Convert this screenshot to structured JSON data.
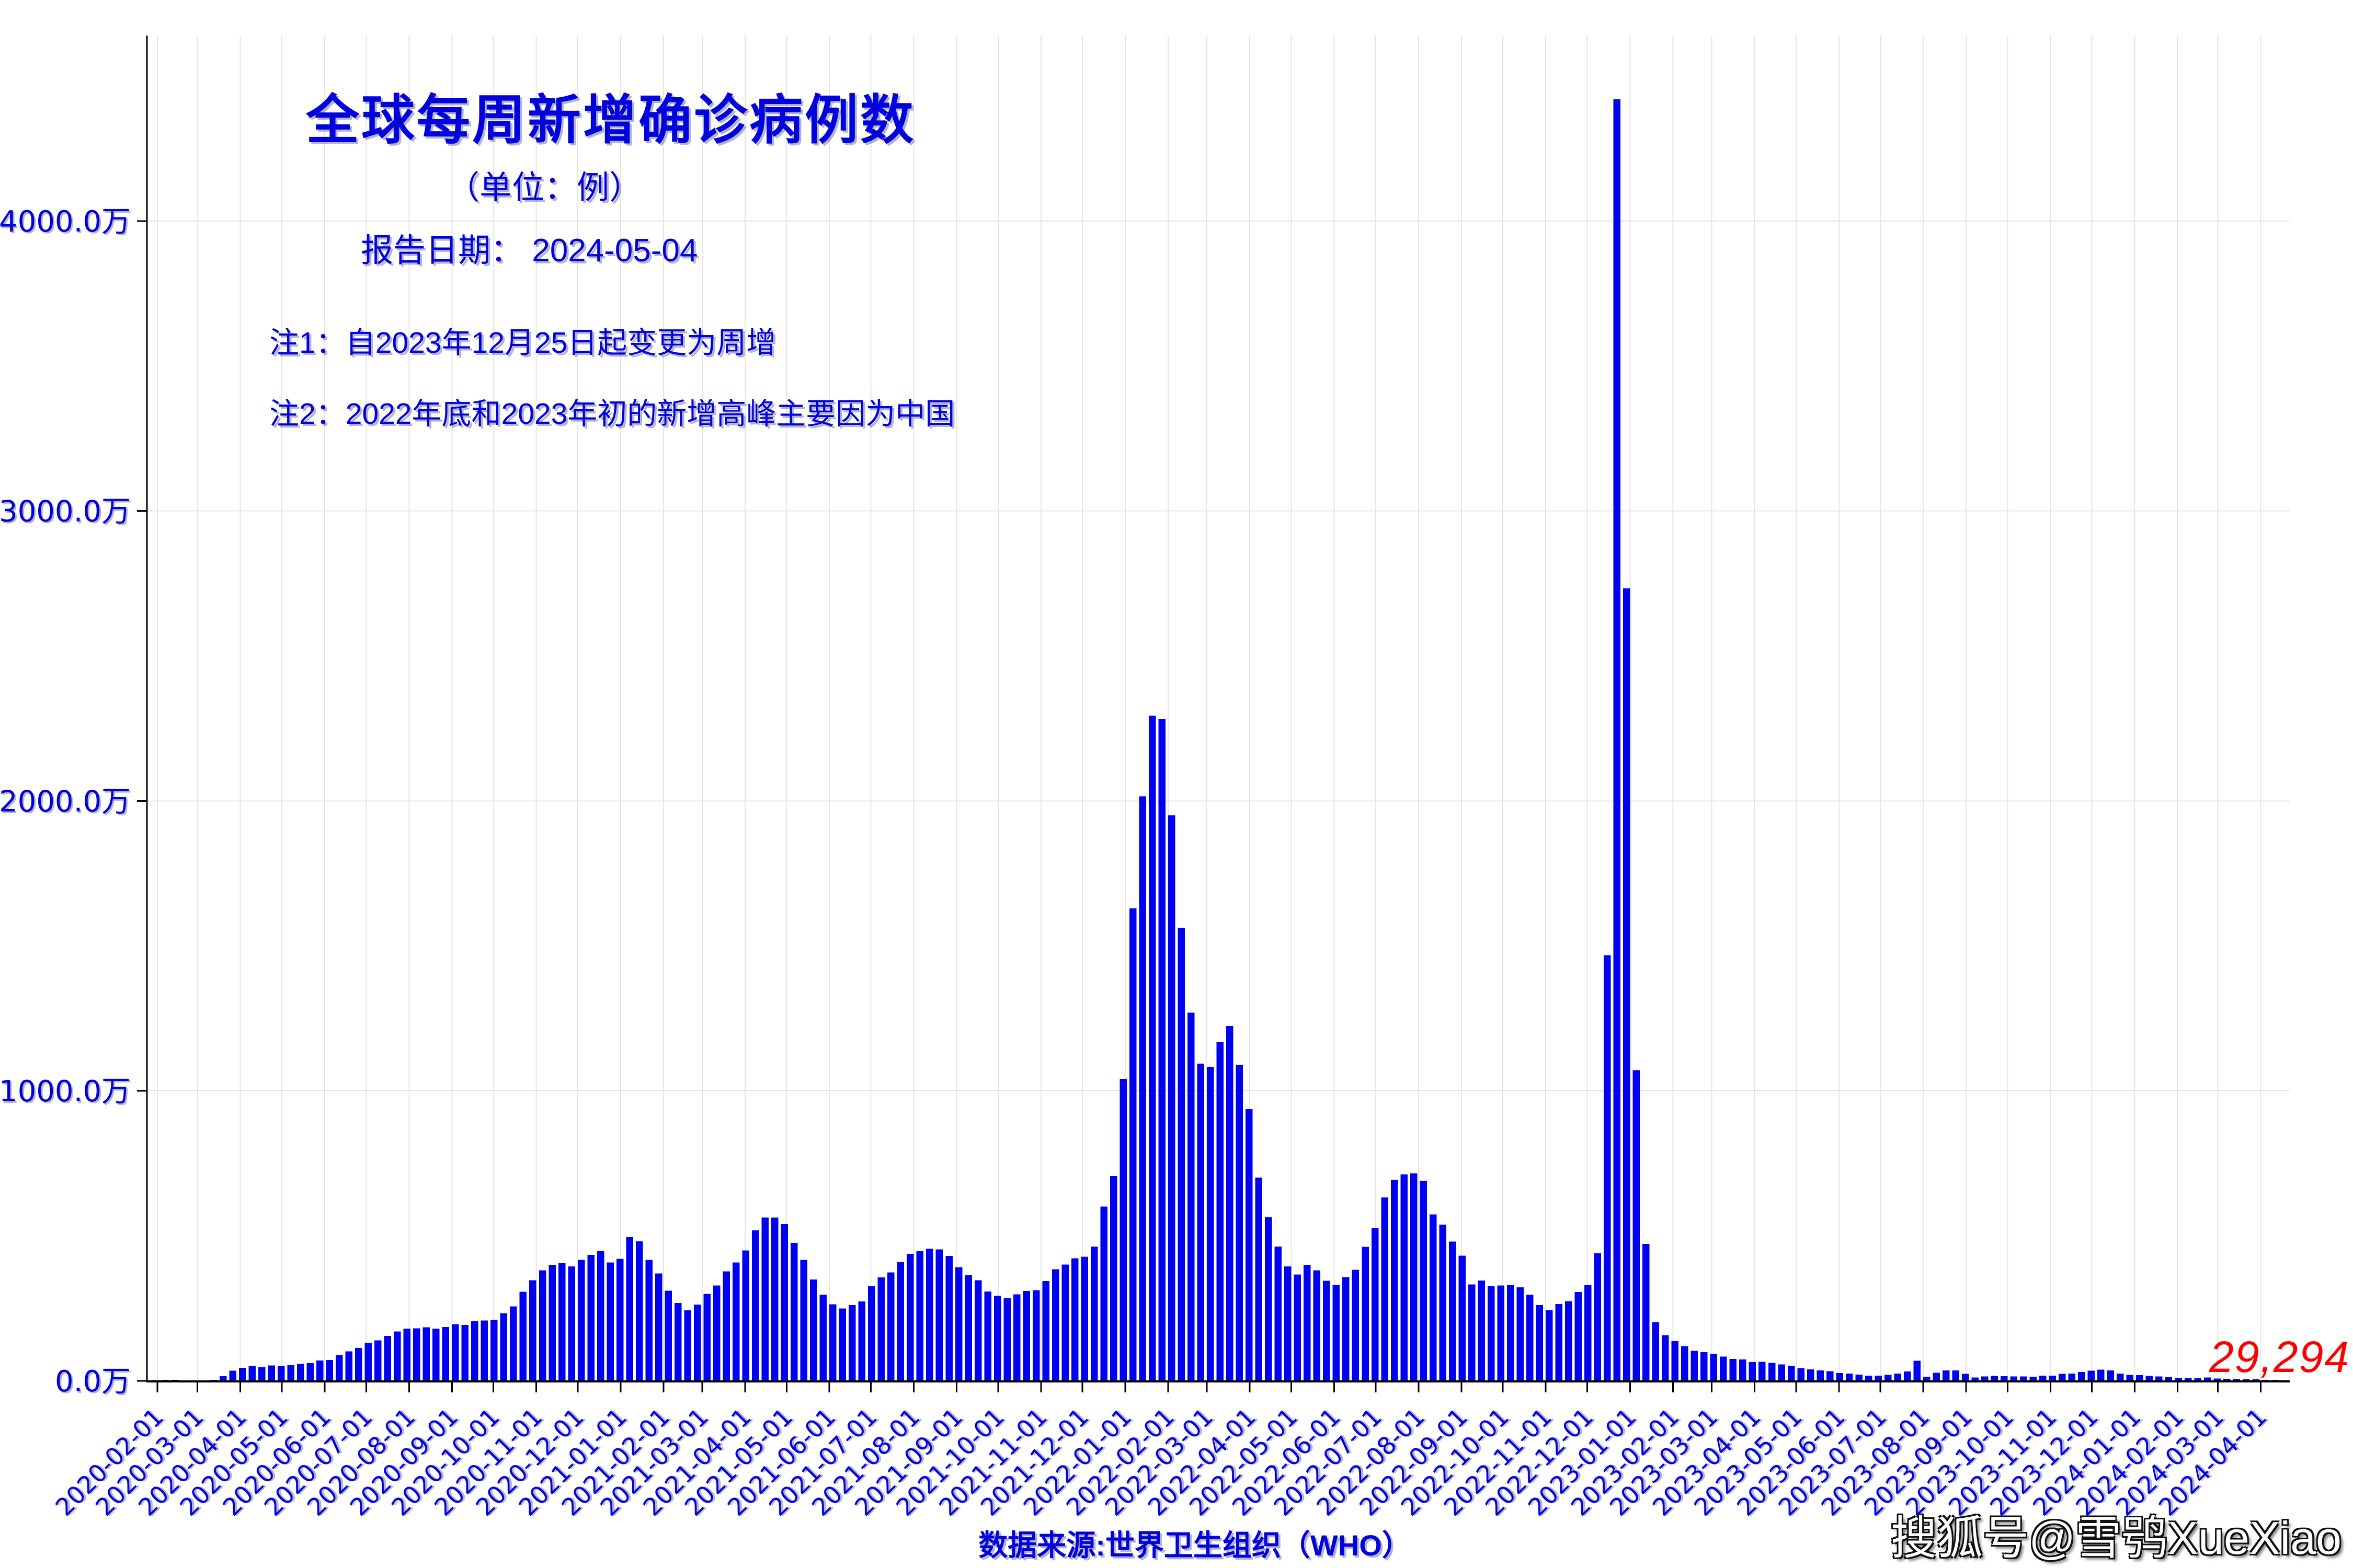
{
  "header": {
    "title": "全球每周新增确诊病例数",
    "subtitle": "（单位：例）",
    "report_date": "报告日期： 2024-05-04",
    "note1": "注1：自2023年12月25日起变更为周增",
    "note2": "注2：2022年底和2023年初的新增高峰主要因为中国"
  },
  "footer": {
    "source": "数据来源:世界卫生组织（WHO）",
    "watermark": "搜狐号@雪鸮XueXiao"
  },
  "annotation": {
    "last_value_label": "29,294",
    "color": "#ff0000"
  },
  "colors": {
    "bar": "#0000f2",
    "text_blue": "#0202dd",
    "grid": "#e4e4e4",
    "axis": "#000000"
  },
  "chart_data": {
    "type": "bar",
    "title": "全球每周新增确诊病例数",
    "unit": "例",
    "xlabel": "",
    "ylabel": "",
    "grid": true,
    "legend": "none",
    "value_unit_note": "values_wan are weekly new confirmed cases in units of 万 (10,000) cases",
    "ylim_wan": [
      0,
      4640
    ],
    "y_ticks": [
      {
        "wan": 0,
        "label": "0.0万"
      },
      {
        "wan": 1000,
        "label": "1000.0万"
      },
      {
        "wan": 2000,
        "label": "2000.0万"
      },
      {
        "wan": 3000,
        "label": "3000.0万"
      },
      {
        "wan": 4000,
        "label": "4000.0万"
      }
    ],
    "x_tick_labels": [
      "2020-02-01",
      "2020-03-01",
      "2020-04-01",
      "2020-05-01",
      "2020-06-01",
      "2020-07-01",
      "2020-08-01",
      "2020-09-01",
      "2020-10-01",
      "2020-11-01",
      "2020-12-01",
      "2021-01-01",
      "2021-02-01",
      "2021-03-01",
      "2021-04-01",
      "2021-05-01",
      "2021-06-01",
      "2021-07-01",
      "2021-08-01",
      "2021-09-01",
      "2021-10-01",
      "2021-11-01",
      "2021-12-01",
      "2022-01-01",
      "2022-02-01",
      "2022-03-01",
      "2022-04-01",
      "2022-05-01",
      "2022-06-01",
      "2022-07-01",
      "2022-08-01",
      "2022-09-01",
      "2022-10-01",
      "2022-11-01",
      "2022-12-01",
      "2023-01-01",
      "2023-02-01",
      "2023-03-01",
      "2023-04-01",
      "2023-05-01",
      "2023-06-01",
      "2023-07-01",
      "2023-08-01",
      "2023-09-01",
      "2023-10-01",
      "2023-11-01",
      "2023-12-01",
      "2024-01-01",
      "2024-02-01",
      "2024-03-01",
      "2024-04-01"
    ],
    "weekly": {
      "first_week_start": "2020-01-06",
      "last_value_cases": 29294,
      "values_wan": [
        0.1,
        0.3,
        0.8,
        2.6,
        3.2,
        3.5,
        1.4,
        1.1,
        1.5,
        4,
        16,
        35,
        45,
        51,
        48,
        53,
        51,
        54,
        59,
        61,
        70,
        72,
        88,
        102,
        114,
        132,
        140,
        155,
        170,
        180,
        181,
        185,
        180,
        186,
        196,
        193,
        206,
        208,
        211,
        233,
        257,
        307,
        347,
        381,
        400,
        407,
        395,
        417,
        434,
        449,
        408,
        421,
        496,
        481,
        417,
        370,
        311,
        269,
        243,
        263,
        300,
        329,
        378,
        408,
        450,
        519,
        563,
        563,
        541,
        476,
        417,
        350,
        297,
        264,
        250,
        261,
        274,
        326,
        357,
        374,
        409,
        438,
        447,
        456,
        453,
        431,
        392,
        365,
        347,
        308,
        294,
        286,
        298,
        310,
        313,
        344,
        385,
        401,
        423,
        428,
        463,
        601,
        707,
        1042,
        1629,
        2016,
        2294,
        2282,
        1950,
        1563,
        1270,
        1094,
        1083,
        1168,
        1224,
        1090,
        937,
        701,
        564,
        463,
        395,
        367,
        400,
        381,
        345,
        331,
        358,
        383,
        462,
        528,
        633,
        693,
        712,
        716,
        690,
        574,
        539,
        480,
        432,
        333,
        346,
        327,
        329,
        330,
        323,
        297,
        261,
        244,
        265,
        275,
        306,
        330,
        441,
        1468,
        4420,
        2733,
        1072,
        472,
        203,
        158,
        137,
        120,
        104,
        99,
        93,
        84,
        76,
        74,
        65,
        66,
        62,
        57,
        52,
        44,
        40,
        36,
        33,
        27,
        25,
        22,
        18,
        18,
        21,
        25,
        32,
        69,
        14,
        28,
        36,
        36,
        24,
        12,
        15,
        17,
        16,
        15,
        15,
        14,
        18,
        18,
        24,
        25,
        31,
        35,
        39,
        36,
        25,
        21,
        20,
        17,
        15,
        13,
        11,
        10,
        9,
        12,
        8,
        7,
        6,
        5,
        5,
        4,
        4,
        2.9294
      ]
    }
  }
}
